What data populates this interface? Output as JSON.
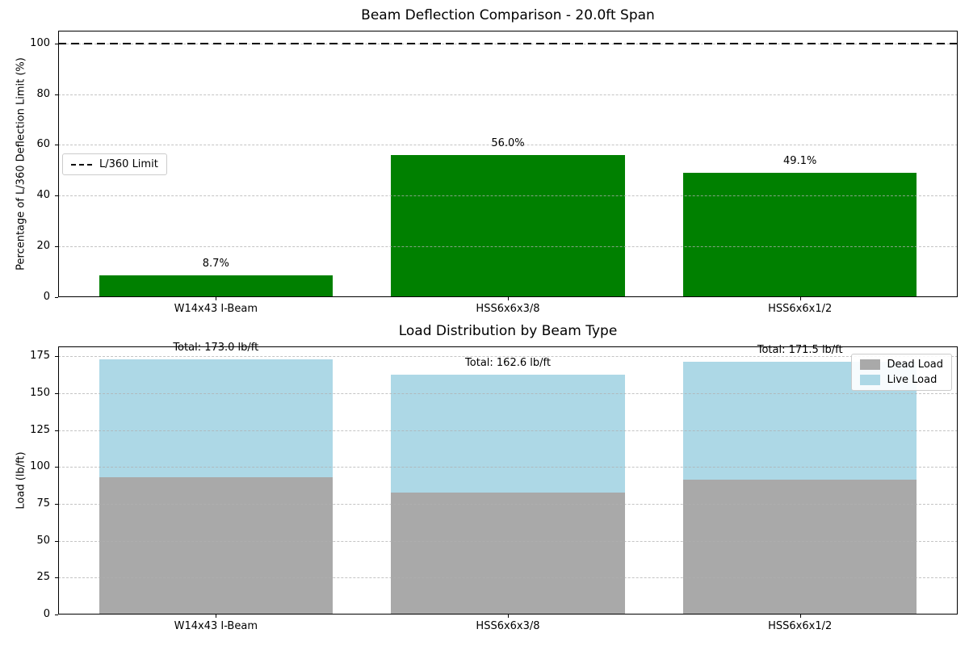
{
  "figure": {
    "background": "#ffffff"
  },
  "colors": {
    "pass_bar_green": "#008000",
    "dead_load_gray": "#a9a9a9",
    "live_load_lightblue": "#add8e6",
    "grid_gray": "#b0b0b0",
    "limit_line_black": "#000000",
    "spine_black": "#000000"
  },
  "chart_data": [
    {
      "type": "bar",
      "title": "Beam Deflection Comparison - 20.0ft Span",
      "xlabel": "",
      "ylabel": "Percentage of L/360 Deflection Limit (%)",
      "categories": [
        "W14x43 I-Beam",
        "HSS6x6x3/8",
        "HSS6x6x1/2"
      ],
      "values": [
        8.7,
        56.0,
        49.1
      ],
      "bar_labels": [
        "8.7%",
        "56.0%",
        "49.1%"
      ],
      "bar_color": "#008000",
      "yticks": [
        0,
        20,
        40,
        60,
        80,
        100
      ],
      "ylim": [
        0,
        105
      ],
      "xlim": [
        -0.54,
        2.54
      ],
      "bar_width": 0.8,
      "grid": "y-axis, dashed",
      "ref_line": {
        "value": 100,
        "label": "L/360 Limit",
        "color": "#000000",
        "style": "dashed"
      },
      "legend": {
        "position": "center-left",
        "entries": [
          {
            "label": "L/360 Limit",
            "marker": "dashed-line",
            "color": "#000000"
          }
        ]
      }
    },
    {
      "type": "stacked-bar",
      "title": "Load Distribution by Beam Type",
      "xlabel": "",
      "ylabel": "Load (lb/ft)",
      "categories": [
        "W14x43 I-Beam",
        "HSS6x6x3/8",
        "HSS6x6x1/2"
      ],
      "series": [
        {
          "name": "Dead Load",
          "color": "#a9a9a9",
          "values": [
            93.0,
            82.6,
            91.5
          ]
        },
        {
          "name": "Live Load",
          "color": "#add8e6",
          "values": [
            80.0,
            80.0,
            80.0
          ]
        }
      ],
      "totals": [
        173.0,
        162.6,
        171.5
      ],
      "total_labels": [
        "Total: 173.0 lb/ft",
        "Total: 162.6 lb/ft",
        "Total: 171.5 lb/ft"
      ],
      "yticks": [
        0,
        25,
        50,
        75,
        100,
        125,
        150,
        175
      ],
      "ylim": [
        0,
        181.7
      ],
      "xlim": [
        -0.54,
        2.54
      ],
      "bar_width": 0.8,
      "grid": "y-axis, dashed",
      "legend": {
        "position": "upper-right",
        "entries": [
          {
            "label": "Dead Load",
            "marker": "swatch",
            "color": "#a9a9a9"
          },
          {
            "label": "Live Load",
            "marker": "swatch",
            "color": "#add8e6"
          }
        ]
      }
    }
  ]
}
